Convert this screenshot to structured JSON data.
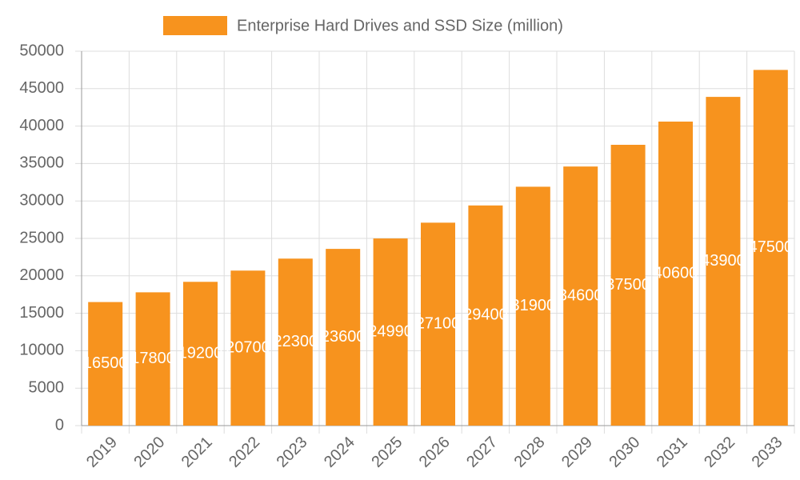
{
  "chart_data": {
    "type": "bar",
    "series": [
      {
        "name": "Enterprise Hard Drives and SSD Size (million)",
        "color": "#f7931e",
        "values": [
          16500,
          17800,
          19200,
          20700,
          22300,
          23600,
          24990,
          27100,
          29400,
          31900,
          34600,
          37500,
          40600,
          43900,
          47500
        ]
      }
    ],
    "categories": [
      "2019",
      "2020",
      "2021",
      "2022",
      "2023",
      "2024",
      "2025",
      "2026",
      "2027",
      "2028",
      "2029",
      "2030",
      "2031",
      "2032",
      "2033"
    ],
    "ylim": [
      0,
      50000
    ],
    "yticks": [
      0,
      5000,
      10000,
      15000,
      20000,
      25000,
      30000,
      35000,
      40000,
      45000,
      50000
    ],
    "grid": true,
    "legend": "top"
  }
}
